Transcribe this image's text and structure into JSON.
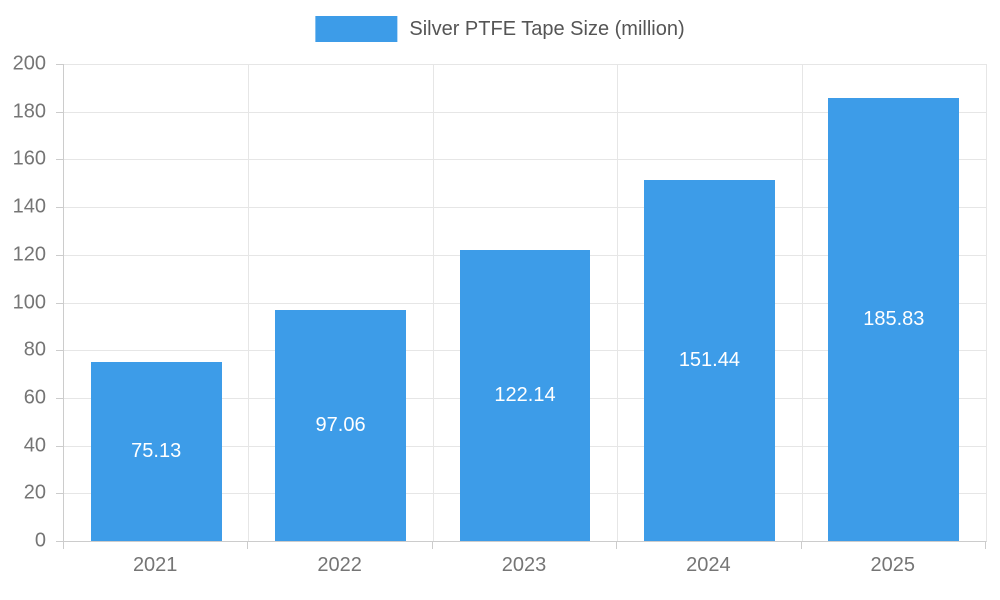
{
  "chart_data": {
    "type": "bar",
    "title": "Silver PTFE Tape Size (million)",
    "categories": [
      "2021",
      "2022",
      "2023",
      "2024",
      "2025"
    ],
    "values": [
      75.13,
      97.06,
      122.14,
      151.44,
      185.83
    ],
    "value_labels": [
      "75.13",
      "97.06",
      "122.14",
      "151.44",
      "185.83"
    ],
    "xlabel": "",
    "ylabel": "",
    "ylim": [
      0,
      200
    ],
    "yticks": [
      0,
      20,
      40,
      60,
      80,
      100,
      120,
      140,
      160,
      180,
      200
    ],
    "grid": true,
    "legend_position": "top-center",
    "colors": {
      "bar": "#3d9ce8",
      "bar_value_label": "#ffffff",
      "axis_text": "#757575",
      "gridline": "#e6e6e6",
      "axis_line": "#cccccc",
      "title_text": "#555555"
    }
  }
}
